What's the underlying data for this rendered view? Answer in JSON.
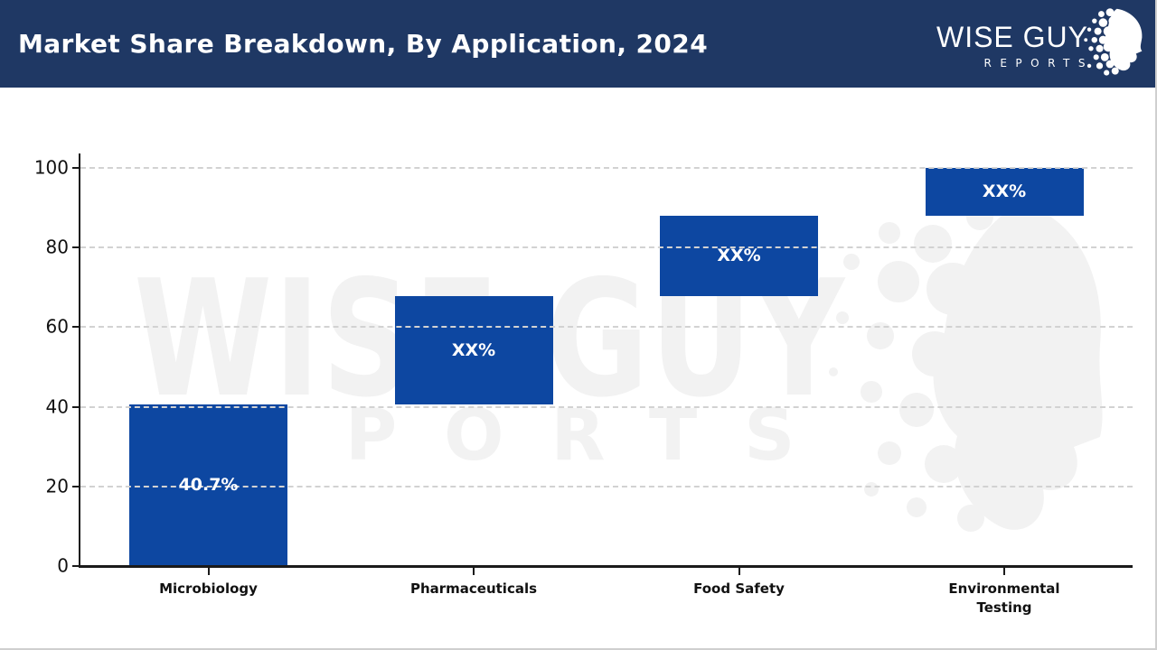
{
  "header": {
    "title": "Market Share Breakdown, By Application, 2024",
    "logo": {
      "brand": "WISE GUY",
      "sub": "REPORTS"
    }
  },
  "watermark": {
    "line1": "WISE GUY",
    "line2": "PORTS"
  },
  "chart_data": {
    "type": "bar",
    "subtype": "waterfall",
    "title": "Market Share Breakdown, By Application, 2024",
    "categories": [
      "Microbiology",
      "Pharmaceuticals",
      "Food Safety",
      "Environmental Testing"
    ],
    "segments": [
      {
        "category": "Microbiology",
        "start": 0,
        "end": 40.7,
        "label": "40.7%"
      },
      {
        "category": "Pharmaceuticals",
        "start": 40.7,
        "end": 67.8,
        "label": "XX%"
      },
      {
        "category": "Food Safety",
        "start": 67.8,
        "end": 88.0,
        "label": "XX%"
      },
      {
        "category": "Environmental Testing",
        "start": 88.0,
        "end": 100,
        "label": "XX%"
      }
    ],
    "xlabel": "",
    "ylabel": "",
    "ylim": [
      0,
      100
    ],
    "yticks": [
      0,
      20,
      40,
      60,
      80,
      100
    ],
    "grid": "horizontal-dashed",
    "legend": "none",
    "bar_color": "#0d47a1",
    "bar_label_color": "#ffffff",
    "gridline_color": "#d2d2d2",
    "axis_color": "#1a1a1a"
  },
  "colors": {
    "header_bg": "#1f3864",
    "watermark": "#f2f2f2"
  }
}
